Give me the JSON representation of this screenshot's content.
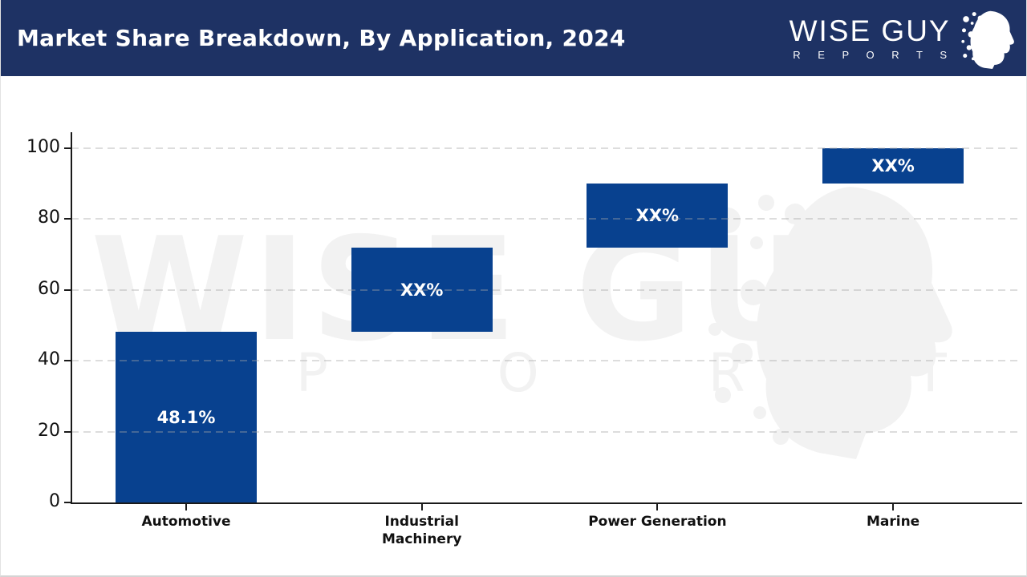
{
  "header": {
    "title": "Market Share Breakdown, By Application, 2024",
    "background_color": "#1e3264",
    "logo": {
      "line1": "WISE GUY",
      "line2": "R E P O R T S",
      "icon": "dotted-face-profile"
    }
  },
  "watermark": {
    "line1": "WISE GUY",
    "line2": "P O R T S",
    "icon": "dotted-face-profile",
    "color": "#f2f2f2"
  },
  "chart_data": {
    "type": "bar",
    "subtype": "waterfall",
    "title": "Market Share Breakdown, By Application, 2024",
    "xlabel": "",
    "ylabel": "",
    "categories": [
      "Automotive",
      "Industrial\nMachinery",
      "Power Generation",
      "Marine"
    ],
    "segments": [
      {
        "category": "Automotive",
        "start": 0,
        "end": 48.1,
        "label": "48.1%"
      },
      {
        "category": "Industrial Machinery",
        "start": 48.1,
        "end": 72,
        "label": "XX%"
      },
      {
        "category": "Power Generation",
        "start": 72,
        "end": 90,
        "label": "XX%"
      },
      {
        "category": "Marine",
        "start": 90,
        "end": 100,
        "label": "XX%"
      }
    ],
    "y_ticks": [
      0,
      20,
      40,
      60,
      80,
      100
    ],
    "ylim": [
      0,
      103
    ],
    "grid": true,
    "grid_style": "dashed",
    "legend": false,
    "bar_color": "#08418f",
    "bar_label_color": "#ffffff",
    "axis_color": "#1a1a1a",
    "gridline_color": "#e3e3e3"
  }
}
